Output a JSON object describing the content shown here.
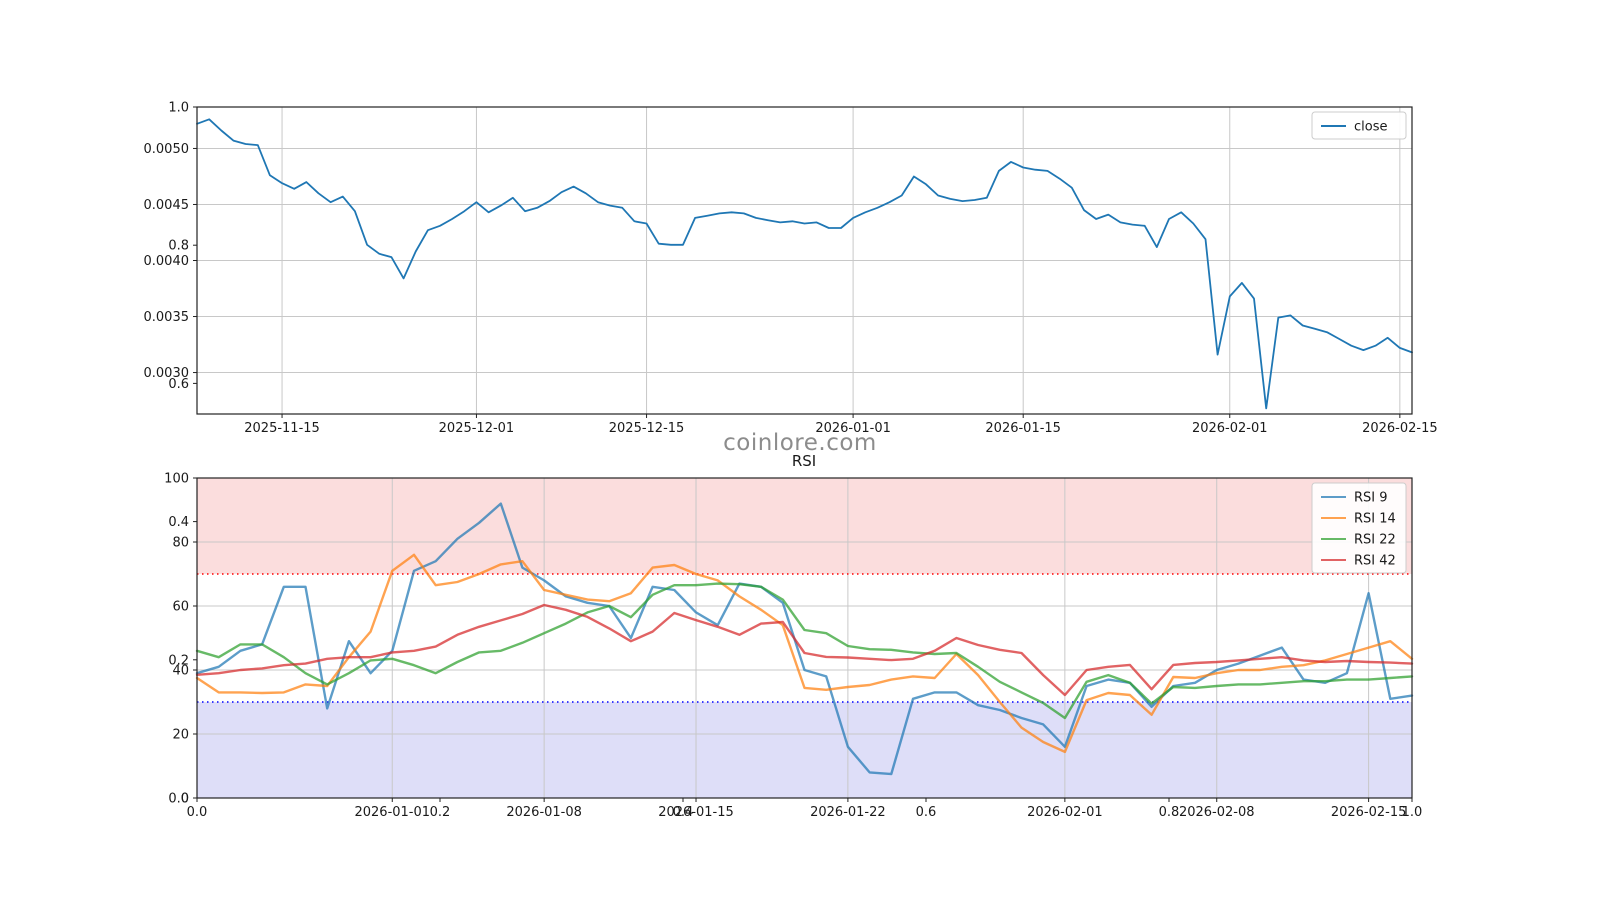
{
  "watermark": "coinlore.com",
  "overlay_axis": {
    "y_ticks": [
      {
        "value": 1.0,
        "label": "1.0"
      },
      {
        "value": 0.8,
        "label": "0.8"
      },
      {
        "value": 0.6,
        "label": "0.6"
      },
      {
        "value": 0.4,
        "label": "0.4"
      },
      {
        "value": 0.2,
        "label": "0.2"
      },
      {
        "value": 0.0,
        "label": "0.0"
      }
    ],
    "x_ticks": [
      {
        "value": 0.0,
        "label": "0.0"
      },
      {
        "value": 0.2,
        "label": "0.2"
      },
      {
        "value": 0.4,
        "label": "0.4"
      },
      {
        "value": 0.6,
        "label": "0.6"
      },
      {
        "value": 0.8,
        "label": "0.8"
      },
      {
        "value": 1.0,
        "label": "1.0"
      }
    ]
  },
  "chart_data": [
    {
      "id": "price",
      "type": "line",
      "title": "",
      "ylim": [
        0.00263,
        0.00537
      ],
      "grid": true,
      "legend_position": "upper right",
      "x_ticks": [
        {
          "index": 7,
          "label": "2025-11-15"
        },
        {
          "index": 23,
          "label": "2025-12-01"
        },
        {
          "index": 37,
          "label": "2025-12-15"
        },
        {
          "index": 54,
          "label": "2026-01-01"
        },
        {
          "index": 68,
          "label": "2026-01-15"
        },
        {
          "index": 85,
          "label": "2026-02-01"
        },
        {
          "index": 99,
          "label": "2026-02-15"
        }
      ],
      "y_ticks": [
        {
          "value": 0.005,
          "label": "0.0050"
        },
        {
          "value": 0.0045,
          "label": "0.0045"
        },
        {
          "value": 0.004,
          "label": "0.0040"
        },
        {
          "value": 0.0035,
          "label": "0.0035"
        },
        {
          "value": 0.003,
          "label": "0.0030"
        }
      ],
      "series": [
        {
          "name": "close",
          "color": "#1f77b4",
          "opacity": 1,
          "width": 1.8,
          "values": [
            0.00522,
            0.00526,
            0.00516,
            0.00507,
            0.00504,
            0.00503,
            0.00476,
            0.00469,
            0.00464,
            0.0047,
            0.0046,
            0.00452,
            0.00457,
            0.00444,
            0.00414,
            0.00406,
            0.00403,
            0.00384,
            0.00408,
            0.00427,
            0.00431,
            0.00437,
            0.00444,
            0.00452,
            0.00443,
            0.00449,
            0.00456,
            0.00444,
            0.00447,
            0.00453,
            0.00461,
            0.00466,
            0.0046,
            0.00452,
            0.00449,
            0.00447,
            0.00435,
            0.00433,
            0.00415,
            0.00414,
            0.00414,
            0.00438,
            0.0044,
            0.00442,
            0.00443,
            0.00442,
            0.00438,
            0.00436,
            0.00434,
            0.00435,
            0.00433,
            0.00434,
            0.00429,
            0.00429,
            0.00438,
            0.00443,
            0.00447,
            0.00452,
            0.00458,
            0.00475,
            0.00468,
            0.00458,
            0.00455,
            0.00453,
            0.00454,
            0.00456,
            0.0048,
            0.00488,
            0.00483,
            0.00481,
            0.0048,
            0.00473,
            0.00465,
            0.00445,
            0.00437,
            0.00441,
            0.00434,
            0.00432,
            0.00431,
            0.00412,
            0.00437,
            0.00443,
            0.00433,
            0.00419,
            0.00316,
            0.00368,
            0.0038,
            0.00366,
            0.00268,
            0.00349,
            0.00351,
            0.00342,
            0.00339,
            0.00336,
            0.0033,
            0.00324,
            0.0032,
            0.00324,
            0.00331,
            0.00322,
            0.00318
          ]
        }
      ]
    },
    {
      "id": "rsi",
      "type": "line",
      "title": "RSI",
      "ylim": [
        0,
        100
      ],
      "grid": true,
      "legend_position": "upper right",
      "bands": [
        {
          "from": 70,
          "to": 100,
          "color": "#fbdddd"
        },
        {
          "from": 0,
          "to": 30,
          "color": "#dedef8"
        }
      ],
      "hlines": [
        {
          "y": 70,
          "color": "#ff0000"
        },
        {
          "y": 30,
          "color": "#0000ff"
        }
      ],
      "x_ticks": [
        {
          "index": 9,
          "label": "2026-01-01"
        },
        {
          "index": 16,
          "label": "2026-01-08"
        },
        {
          "index": 23,
          "label": "2026-01-15"
        },
        {
          "index": 30,
          "label": "2026-01-22"
        },
        {
          "index": 40,
          "label": "2026-02-01"
        },
        {
          "index": 47,
          "label": "2026-02-08"
        },
        {
          "index": 54,
          "label": "2026-02-15"
        }
      ],
      "y_ticks": [
        {
          "value": 100,
          "label": "100"
        },
        {
          "value": 80,
          "label": "80"
        },
        {
          "value": 60,
          "label": "60"
        },
        {
          "value": 40,
          "label": "40"
        },
        {
          "value": 20,
          "label": "20"
        },
        {
          "value": 0,
          "label": "0"
        }
      ],
      "series": [
        {
          "name": "RSI 9",
          "color": "#1f77b4",
          "opacity": 0.72,
          "width": 2.4,
          "values": [
            39,
            41,
            46,
            48,
            66,
            66,
            28,
            49,
            39,
            46,
            71,
            74,
            81,
            86,
            92,
            72,
            68,
            63,
            61,
            60,
            50,
            66,
            65,
            58,
            54,
            67,
            66,
            61,
            40,
            38,
            16,
            8,
            7.5,
            31,
            33,
            33,
            29,
            27.5,
            25,
            23,
            16,
            35,
            37,
            36,
            28.5,
            35,
            36,
            40,
            42,
            44.5,
            47,
            37,
            36,
            39,
            64,
            31,
            32
          ]
        },
        {
          "name": "RSI 14",
          "color": "#ff7f0e",
          "opacity": 0.72,
          "width": 2.4,
          "values": [
            37.5,
            33,
            33,
            32.8,
            33,
            35.5,
            35,
            44,
            52,
            71,
            76,
            66.5,
            67.5,
            70,
            73,
            74,
            65,
            63.5,
            62,
            61.5,
            64,
            72,
            72.8,
            70,
            68,
            63,
            58.8,
            54,
            34.4,
            33.8,
            34.7,
            35.3,
            37,
            38,
            37.5,
            45,
            38.4,
            30,
            22,
            17.5,
            14.4,
            30.6,
            32.8,
            32.2,
            26,
            37.8,
            37.5,
            39,
            40,
            40,
            41,
            41.5,
            43,
            45,
            47,
            49,
            43.5
          ]
        },
        {
          "name": "RSI 22",
          "color": "#2ca02c",
          "opacity": 0.72,
          "width": 2.4,
          "values": [
            46,
            44,
            48,
            48,
            44,
            39,
            35.5,
            39,
            43,
            43.5,
            41.5,
            39,
            42.5,
            45.5,
            46,
            48.5,
            51.5,
            54.5,
            58,
            60,
            56.5,
            63.5,
            66.5,
            66.5,
            67,
            66.8,
            66,
            62,
            52.5,
            51.5,
            47.5,
            46.5,
            46.3,
            45.5,
            45,
            45.3,
            41,
            36.3,
            33,
            29.7,
            25,
            36.3,
            38.4,
            36,
            29.5,
            34.7,
            34.4,
            35,
            35.5,
            35.5,
            36,
            36.5,
            36.5,
            37,
            37,
            37.5,
            38
          ]
        },
        {
          "name": "RSI 42",
          "color": "#d62728",
          "opacity": 0.72,
          "width": 2.4,
          "values": [
            38.5,
            39,
            40,
            40.5,
            41.5,
            42,
            43.5,
            44,
            44,
            45.5,
            46,
            47.3,
            51,
            53.5,
            55.5,
            57.5,
            60.3,
            58.8,
            56.6,
            53,
            49,
            52,
            57.8,
            55.6,
            53.5,
            51,
            54.5,
            55,
            45.3,
            44.1,
            43.9,
            43.5,
            43.1,
            43.5,
            46,
            50,
            47.8,
            46.3,
            45.3,
            38.4,
            32.2,
            40,
            41,
            41.6,
            34,
            41.6,
            42.2,
            42.5,
            43,
            43.5,
            44,
            43,
            42.5,
            42.8,
            42.5,
            42.3,
            42
          ]
        }
      ]
    }
  ]
}
